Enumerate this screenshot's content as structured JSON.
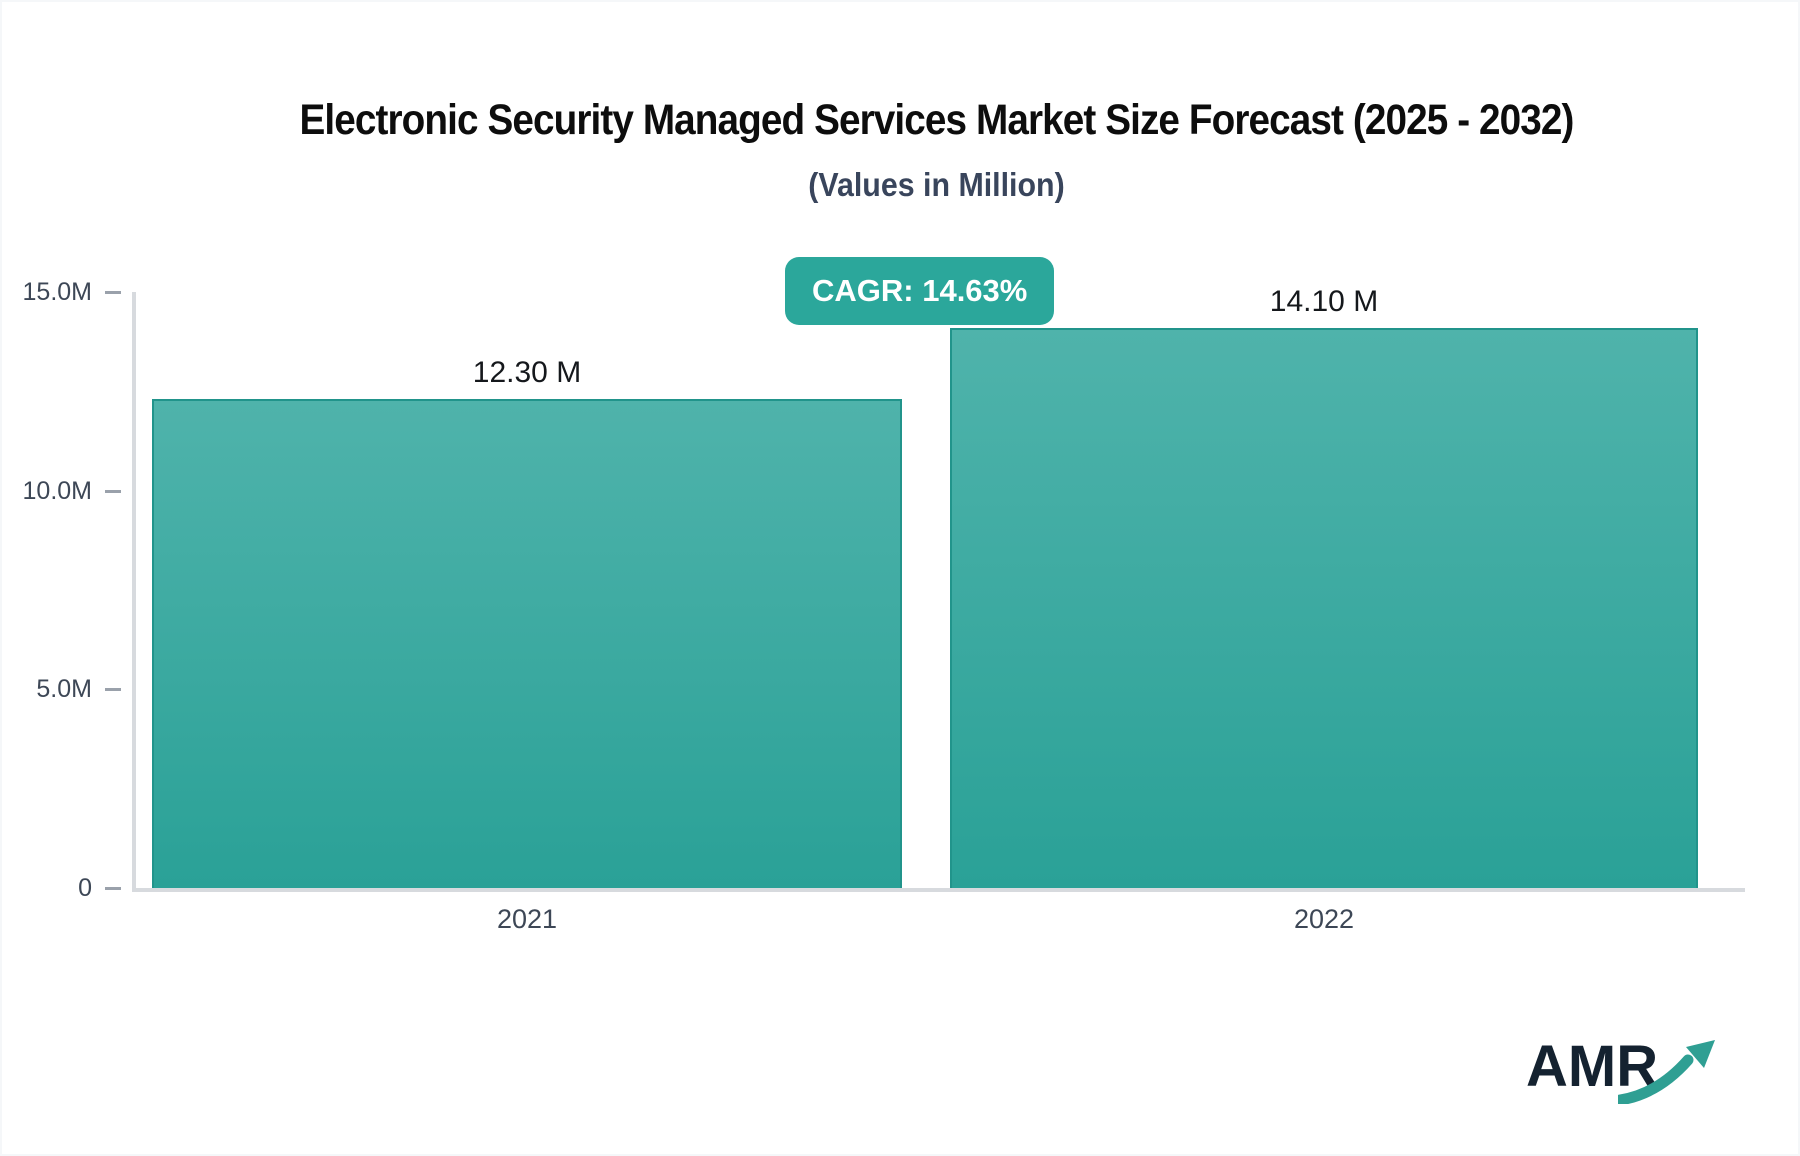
{
  "chart_data": {
    "type": "bar",
    "title": "Electronic Security Managed Services Market Size Forecast (2025 - 2032)",
    "subtitle": "(Values in Million)",
    "annotation": "CAGR: 14.63%",
    "categories": [
      "2021",
      "2022"
    ],
    "values": [
      12.3,
      14.1
    ],
    "value_labels": [
      "12.30 M",
      "14.10 M"
    ],
    "xlabel": "",
    "ylabel": "",
    "ylim": [
      0,
      15
    ],
    "yticks": [
      0,
      5,
      10,
      15
    ],
    "ytick_labels": [
      "0",
      "5.0M",
      "10.0M",
      "15.0M"
    ],
    "grid": false,
    "legend": false,
    "bar_color_top": "#4fb3ab",
    "bar_color_bottom": "#2aa197",
    "bar_border_color": "#21948b"
  },
  "colors": {
    "accent_teal": "#2ba79b",
    "axis_line": "#d7dade",
    "tick_mark": "#9aa1ab",
    "tick_text": "#3d4756",
    "title_text": "#0d0d0d",
    "subtitle_text": "#39455c",
    "logo_text_color": "#142230",
    "logo_arrow_color": "#2f9f93"
  },
  "logo": {
    "text": "AMR"
  }
}
